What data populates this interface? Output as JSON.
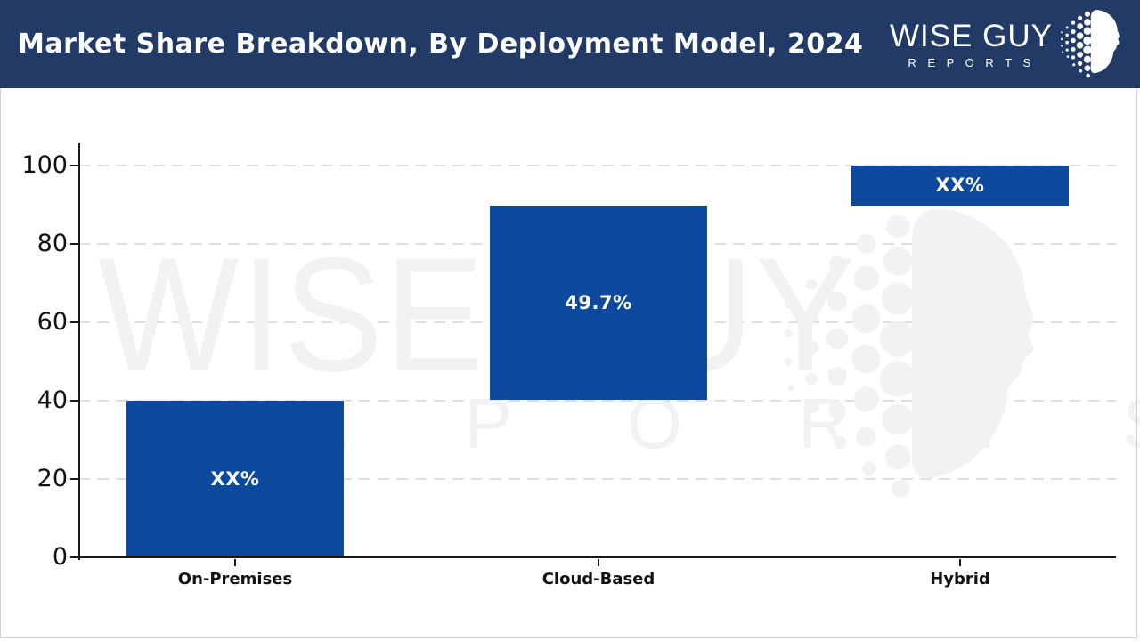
{
  "header": {
    "title": "Market Share Breakdown, By Deployment Model, 2024",
    "logo": {
      "brand_top": "WISE GUY",
      "brand_bottom": "R E P O R T S",
      "icon": "dotted-head-profile"
    }
  },
  "watermark": {
    "line1": "WISE GUY",
    "line2": "R E P O R T S",
    "icon": "dotted-head-profile"
  },
  "colors": {
    "header_bg": "#213a66",
    "bar_fill": "#0d4a9e",
    "grid_line": "#dedede",
    "axis_line": "#1a1a1a",
    "tick_text": "#111111",
    "bar_label_text": "#ffffff",
    "watermark": "#f2f2f4",
    "frame_border": "#d4d4d4"
  },
  "chart_data": {
    "type": "bar",
    "subtype": "stacked-waterfall-segments",
    "title": "Market Share Breakdown, By Deployment Model, 2024",
    "categories": [
      "On-Premises",
      "Cloud-Based",
      "Hybrid"
    ],
    "series": [
      {
        "name": "Market share segment",
        "values": [
          40,
          49.7,
          10.3
        ],
        "labels": [
          "XX%",
          "49.7%",
          "XX%"
        ]
      }
    ],
    "segments": [
      {
        "category": "On-Premises",
        "start": 0,
        "end": 40,
        "label": "XX%"
      },
      {
        "category": "Cloud-Based",
        "start": 40,
        "end": 89.7,
        "label": "49.7%",
        "value": 49.7
      },
      {
        "category": "Hybrid",
        "start": 89.7,
        "end": 100,
        "label": "XX%"
      }
    ],
    "xlabel": "",
    "ylabel": "",
    "yticks": [
      0,
      20,
      40,
      60,
      80,
      100
    ],
    "ylim": [
      0,
      106
    ],
    "grid": "horizontal-dashed",
    "legend": null
  }
}
